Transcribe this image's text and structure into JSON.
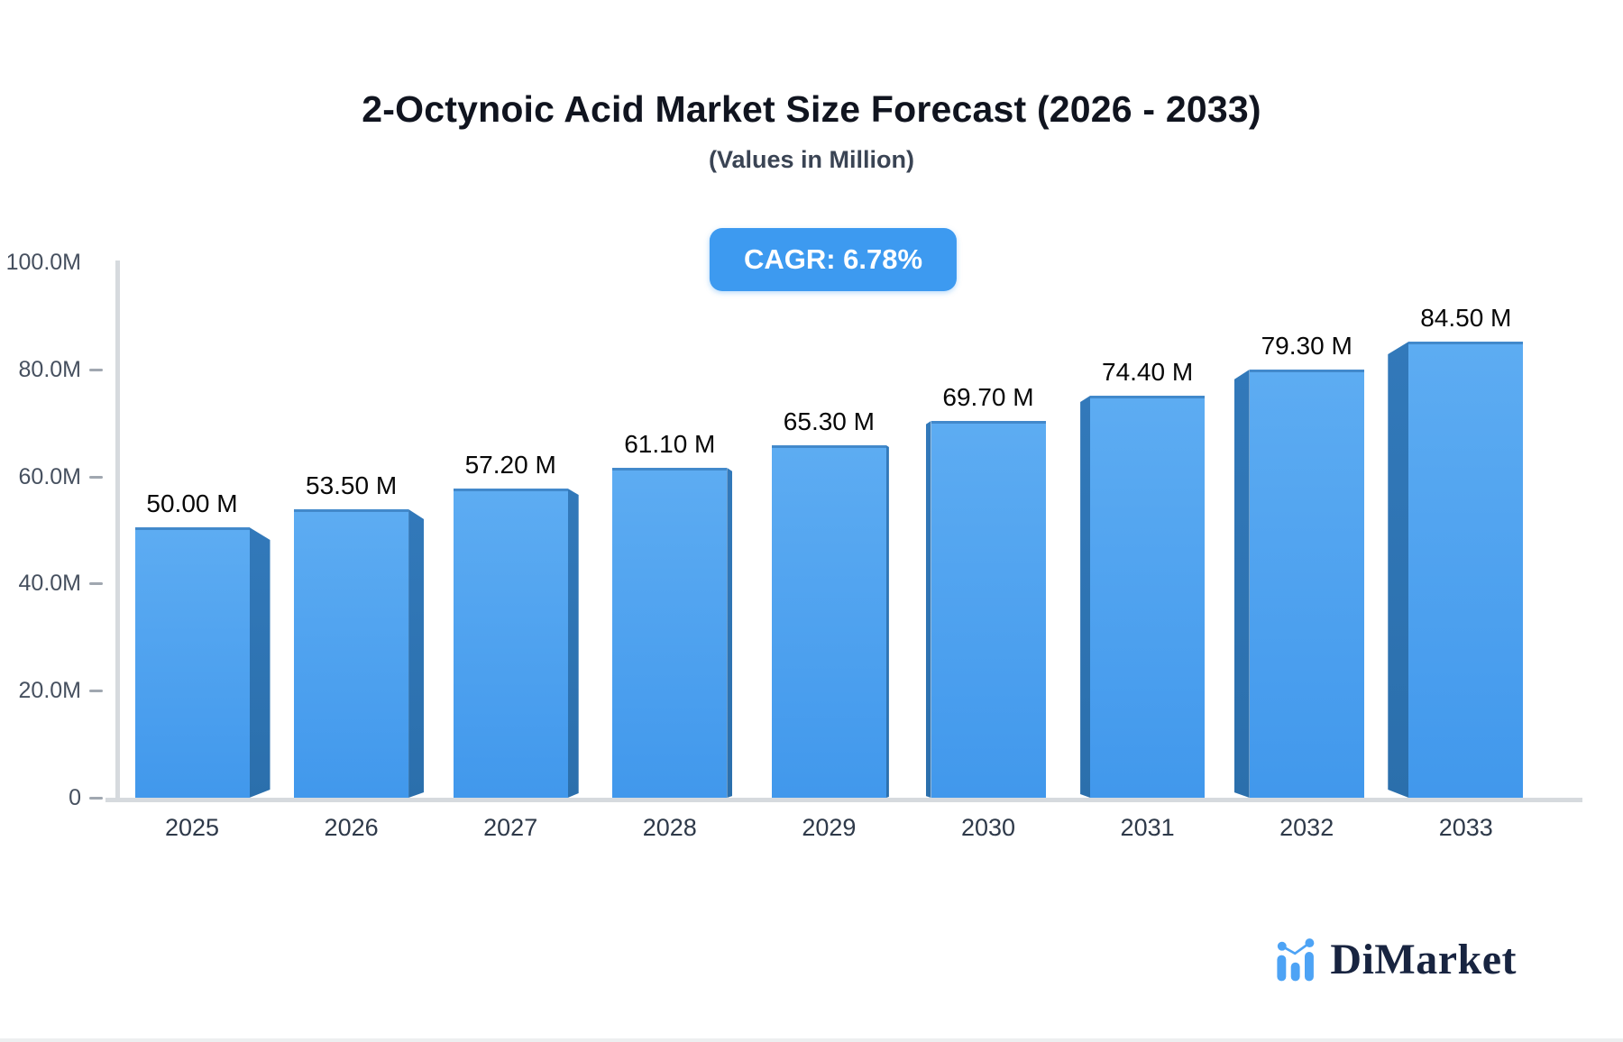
{
  "header": {
    "title": "2-Octynoic Acid Market Size Forecast (2026 - 2033)",
    "subtitle": "(Values in Million)"
  },
  "badge": {
    "label": "CAGR: 6.78%",
    "color": "#3d9af0"
  },
  "chart_data": {
    "type": "bar",
    "title": "2-Octynoic Acid Market Size Forecast (2026 - 2033)",
    "subtitle": "(Values in Million)",
    "unit": "Million",
    "categories": [
      "2025",
      "2026",
      "2027",
      "2028",
      "2029",
      "2030",
      "2031",
      "2032",
      "2033"
    ],
    "values": [
      50.0,
      53.5,
      57.2,
      61.1,
      65.3,
      69.7,
      74.4,
      79.3,
      84.5
    ],
    "value_labels": [
      "50.00 M",
      "53.50 M",
      "57.20 M",
      "61.10 M",
      "65.30 M",
      "69.70 M",
      "74.40 M",
      "79.30 M",
      "84.50 M"
    ],
    "y_ticks": [
      "100.0M",
      "80.0M",
      "60.0M",
      "40.0M",
      "20.0M",
      "0"
    ],
    "ylim": [
      0,
      100
    ],
    "xlabel": "",
    "ylabel": "",
    "grid": false,
    "legend": "none",
    "colors": {
      "bar_front_top": "#5dacf2",
      "bar_front_bottom": "#4198ec",
      "bar_top_edge": "#4289cb",
      "bar_side": "#2e76b5",
      "axis_line": "#d6dade",
      "tick_text": "#46505f",
      "value_text": "#070707"
    }
  },
  "logo": {
    "text": "DiMarket",
    "icon_color": "#4da3f5",
    "text_color": "#182440"
  }
}
